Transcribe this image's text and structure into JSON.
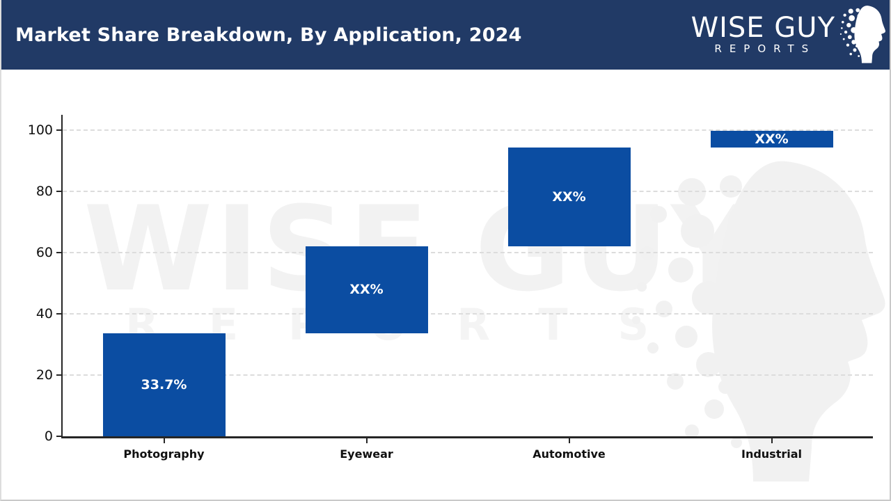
{
  "header": {
    "title": "Market Share Breakdown, By Application, 2024",
    "logo": {
      "line1": "WISE GUY",
      "line2": "REPORTS"
    }
  },
  "watermark": {
    "line1": "WISE GUY",
    "line2": "REPORTS"
  },
  "colors": {
    "header_bg": "#213a66",
    "bar": "#0b4da2",
    "grid": "#dcdcdc",
    "axis": "#262626",
    "bar_label": "#ffffff",
    "watermark": "#f2f2f2"
  },
  "chart_data": {
    "type": "bar",
    "subtype": "waterfall",
    "title": "Market Share Breakdown, By Application, 2024",
    "categories": [
      "Photography",
      "Eyewear",
      "Automotive",
      "Industrial"
    ],
    "segments": [
      {
        "category": "Photography",
        "start": 0,
        "end": 33.7,
        "label": "33.7%"
      },
      {
        "category": "Eyewear",
        "start": 33.7,
        "end": 62.1,
        "label": "XX%"
      },
      {
        "category": "Automotive",
        "start": 62.1,
        "end": 94.4,
        "label": "XX%"
      },
      {
        "category": "Industrial",
        "start": 94.4,
        "end": 99.8,
        "label": "XX%"
      }
    ],
    "ylim": [
      0,
      105
    ],
    "yticks": [
      0,
      20,
      40,
      60,
      80,
      100
    ],
    "grid": "horizontal-dashed",
    "legend": "none",
    "bar_color": "#0b4da2"
  }
}
